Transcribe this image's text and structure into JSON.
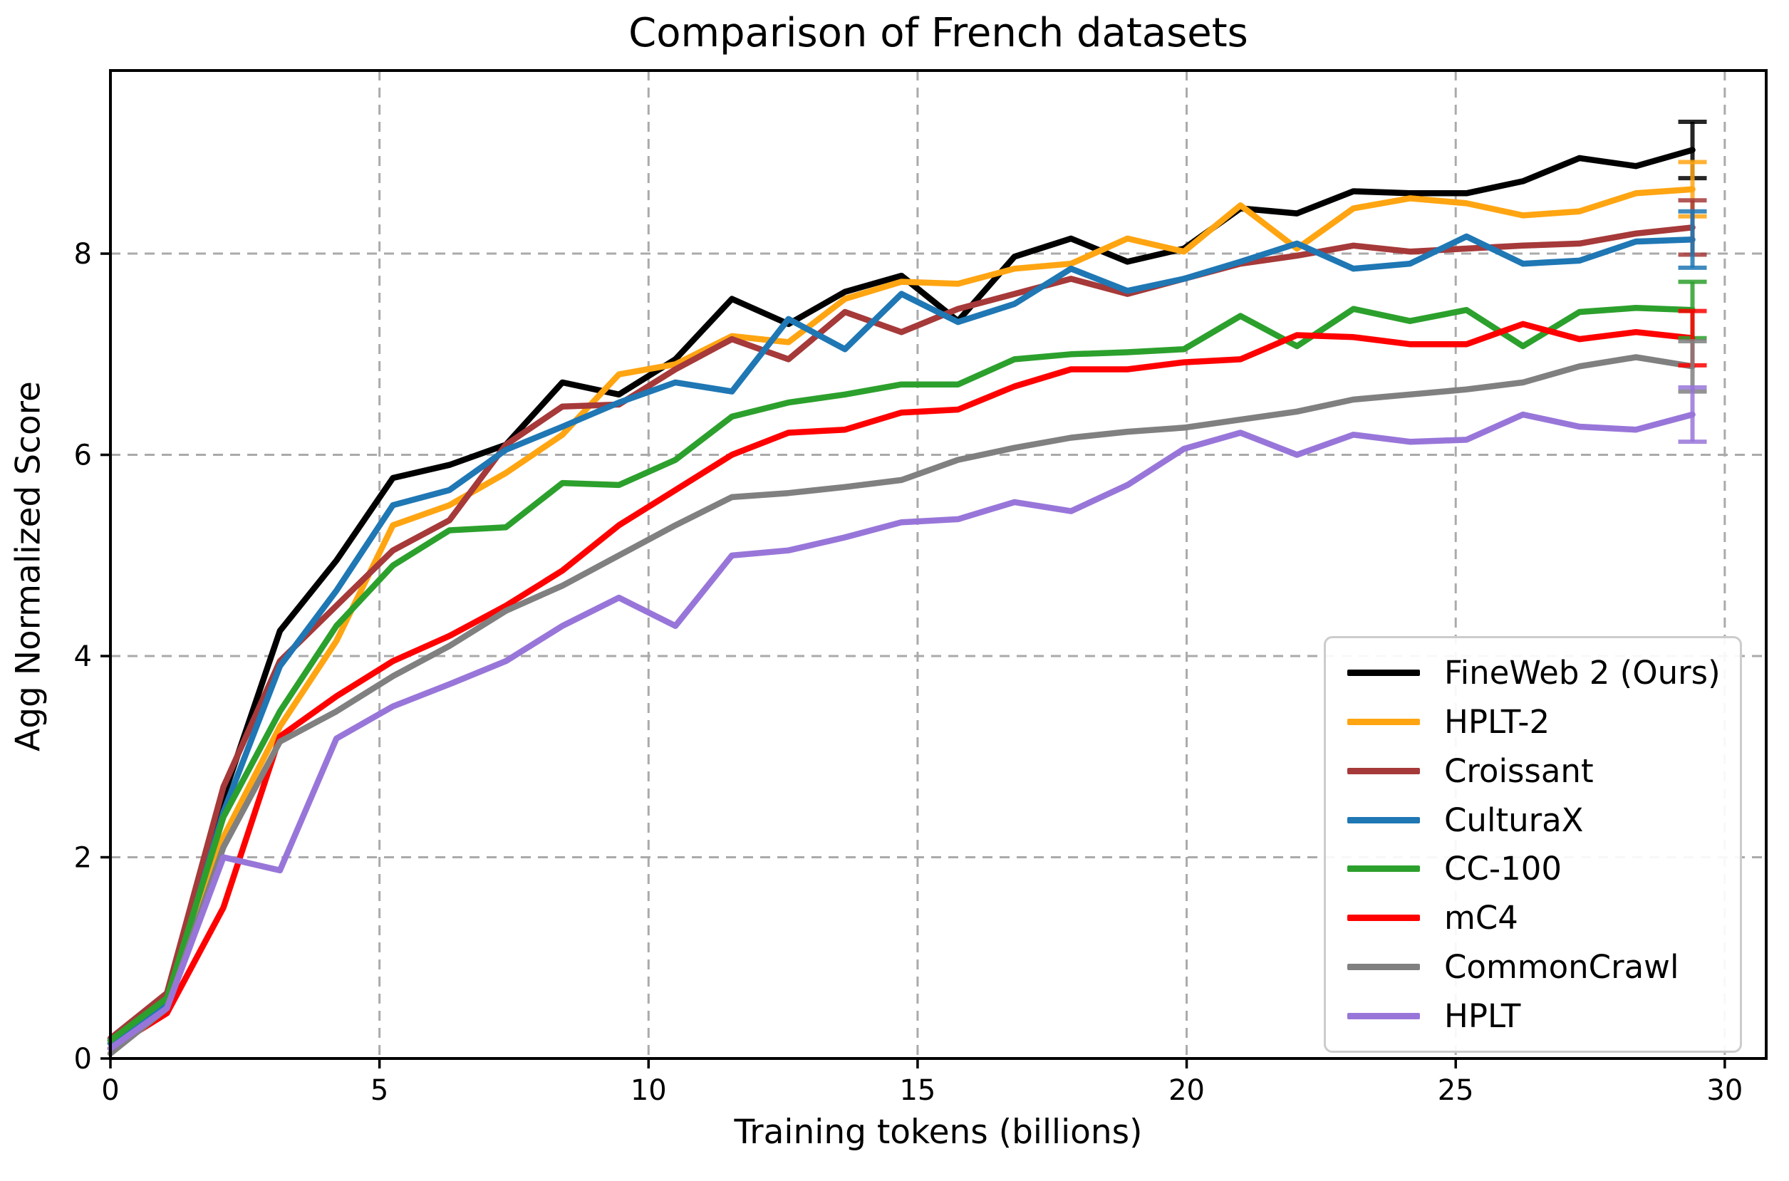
{
  "chart_data": {
    "type": "line",
    "title": "Comparison of French datasets",
    "xlabel": "Training tokens (billions)",
    "ylabel": "Agg Normalized Score",
    "xlim": [
      0,
      30.77
    ],
    "ylim": [
      0,
      9.82
    ],
    "xticks": [
      0,
      5,
      10,
      15,
      20,
      25,
      30
    ],
    "yticks": [
      0,
      2,
      4,
      6,
      8
    ],
    "grid": true,
    "grid_color": "#aaaaaa",
    "legend_position": "lower right",
    "error_bar_x": 29.4,
    "x": [
      0,
      1.05,
      2.1,
      3.15,
      4.2,
      5.25,
      6.3,
      7.35,
      8.4,
      9.45,
      10.5,
      11.55,
      12.6,
      13.65,
      14.7,
      15.75,
      16.8,
      17.85,
      18.9,
      19.95,
      21.0,
      22.05,
      23.1,
      24.15,
      25.2,
      26.25,
      27.3,
      28.35,
      29.4
    ],
    "series": [
      {
        "name": "FineWeb 2 (Ours)",
        "color": "#000000",
        "err": 0.28,
        "values": [
          0.18,
          0.62,
          2.6,
          4.25,
          4.95,
          5.77,
          5.9,
          6.1,
          6.72,
          6.6,
          6.95,
          7.55,
          7.3,
          7.62,
          7.78,
          7.33,
          7.97,
          8.15,
          7.92,
          8.05,
          8.45,
          8.4,
          8.62,
          8.6,
          8.6,
          8.72,
          8.95,
          8.87,
          9.03
        ]
      },
      {
        "name": "HPLT-2",
        "color": "#ffa512",
        "err": 0.27,
        "values": [
          0.15,
          0.55,
          2.2,
          3.3,
          4.15,
          5.3,
          5.5,
          5.82,
          6.2,
          6.8,
          6.9,
          7.18,
          7.12,
          7.55,
          7.72,
          7.7,
          7.85,
          7.9,
          8.15,
          8.02,
          8.48,
          8.05,
          8.45,
          8.55,
          8.5,
          8.38,
          8.42,
          8.6,
          8.64
        ]
      },
      {
        "name": "Croissant",
        "color": "#a63939",
        "err": 0.27,
        "values": [
          0.2,
          0.65,
          2.7,
          3.95,
          4.5,
          5.05,
          5.35,
          6.1,
          6.48,
          6.5,
          6.85,
          7.15,
          6.95,
          7.42,
          7.22,
          7.45,
          7.6,
          7.75,
          7.6,
          7.75,
          7.9,
          7.98,
          8.08,
          8.02,
          8.05,
          8.08,
          8.1,
          8.2,
          8.26
        ]
      },
      {
        "name": "CulturaX",
        "color": "#1f77b4",
        "err": 0.28,
        "values": [
          0.15,
          0.55,
          2.45,
          3.9,
          4.65,
          5.5,
          5.65,
          6.05,
          6.28,
          6.52,
          6.72,
          6.63,
          7.35,
          7.05,
          7.6,
          7.32,
          7.5,
          7.85,
          7.63,
          7.75,
          7.92,
          8.1,
          7.85,
          7.9,
          8.17,
          7.9,
          7.93,
          8.12,
          8.14
        ]
      },
      {
        "name": "CC-100",
        "color": "#2ca02c",
        "err": 0.28,
        "values": [
          0.18,
          0.6,
          2.4,
          3.45,
          4.3,
          4.9,
          5.25,
          5.28,
          5.72,
          5.7,
          5.95,
          6.38,
          6.52,
          6.6,
          6.7,
          6.7,
          6.95,
          7.0,
          7.02,
          7.05,
          7.38,
          7.08,
          7.45,
          7.33,
          7.44,
          7.08,
          7.42,
          7.46,
          7.44
        ]
      },
      {
        "name": "mC4",
        "color": "#ff0000",
        "err": 0.27,
        "values": [
          0.1,
          0.45,
          1.5,
          3.2,
          3.6,
          3.95,
          4.2,
          4.5,
          4.85,
          5.3,
          5.65,
          6.0,
          6.22,
          6.25,
          6.42,
          6.45,
          6.68,
          6.85,
          6.85,
          6.92,
          6.95,
          7.19,
          7.17,
          7.1,
          7.1,
          7.3,
          7.15,
          7.22,
          7.16
        ]
      },
      {
        "name": "CommonCrawl",
        "color": "#808080",
        "err": 0.25,
        "values": [
          0.05,
          0.5,
          2.1,
          3.15,
          3.45,
          3.8,
          4.1,
          4.45,
          4.7,
          5.0,
          5.3,
          5.58,
          5.62,
          5.68,
          5.75,
          5.95,
          6.07,
          6.17,
          6.23,
          6.27,
          6.35,
          6.43,
          6.55,
          6.6,
          6.65,
          6.72,
          6.88,
          6.97,
          6.88
        ]
      },
      {
        "name": "HPLT",
        "color": "#9876d9",
        "err": 0.27,
        "values": [
          0.1,
          0.5,
          2.0,
          1.87,
          3.18,
          3.5,
          3.72,
          3.95,
          4.3,
          4.58,
          4.3,
          5.0,
          5.05,
          5.18,
          5.33,
          5.36,
          5.53,
          5.44,
          5.7,
          6.06,
          6.22,
          6.0,
          6.2,
          6.13,
          6.15,
          6.4,
          6.28,
          6.25,
          6.4
        ]
      }
    ]
  }
}
